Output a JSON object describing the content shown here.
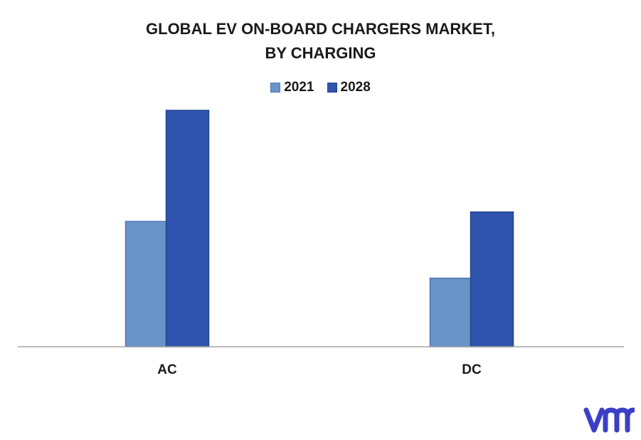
{
  "chart_data": {
    "type": "bar",
    "title": [
      "GLOBAL EV ON-BOARD CHARGERS MARKET,",
      "BY CHARGING"
    ],
    "categories": [
      "AC",
      "DC"
    ],
    "series": [
      {
        "name": "2021",
        "values": [
          53,
          29
        ],
        "color": "#6a93c8"
      },
      {
        "name": "2028",
        "values": [
          100,
          57
        ],
        "color": "#2e54ad"
      }
    ],
    "ylim": [
      0,
      100
    ],
    "grid": false,
    "legend_position": "top-center",
    "xlabel": "",
    "ylabel": ""
  },
  "logo": {
    "icon": "vmr-logo-icon",
    "color": "#3b3fc8"
  }
}
